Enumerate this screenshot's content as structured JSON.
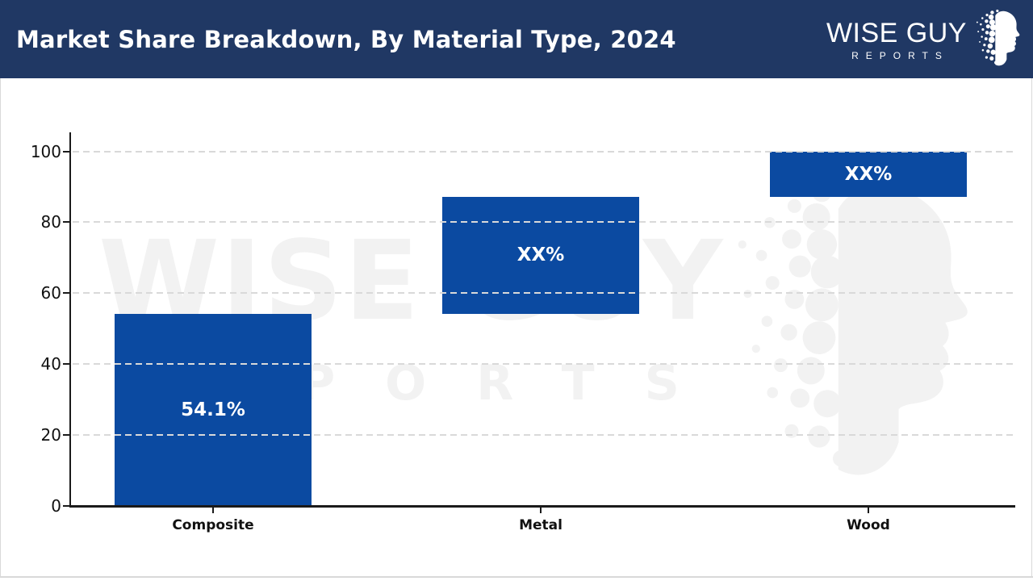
{
  "header": {
    "title": "Market Share Breakdown, By Material Type, 2024",
    "bg_color": "#203864",
    "logo": {
      "wordmark": "WISE GUY",
      "subtext": "REPORTS"
    }
  },
  "watermark": {
    "wordmark": "WISE GUY",
    "subtext": "REPORTS"
  },
  "chart_data": {
    "type": "bar",
    "subtype": "floating-cumulative-segments",
    "title": "Market Share Breakdown, By Material Type, 2024",
    "categories": [
      "Composite",
      "Metal",
      "Wood"
    ],
    "segments": [
      {
        "category": "Composite",
        "start": 0,
        "end": 54.1,
        "label": "54.1%"
      },
      {
        "category": "Metal",
        "start": 54.1,
        "end": 87.2,
        "label": "XX%"
      },
      {
        "category": "Wood",
        "start": 87.2,
        "end": 100,
        "label": "XX%"
      }
    ],
    "yticks": [
      0,
      20,
      40,
      60,
      80,
      100
    ],
    "ylim": [
      0,
      105
    ],
    "xlabel": "",
    "ylabel": "",
    "grid": "horizontal-dashed-over-bars",
    "legend": "none",
    "bar_color": "#0b4aa1",
    "bar_label_color": "#ffffff",
    "gridline_color": "#d9d9d9",
    "axis_color": "#1a1a1a"
  }
}
